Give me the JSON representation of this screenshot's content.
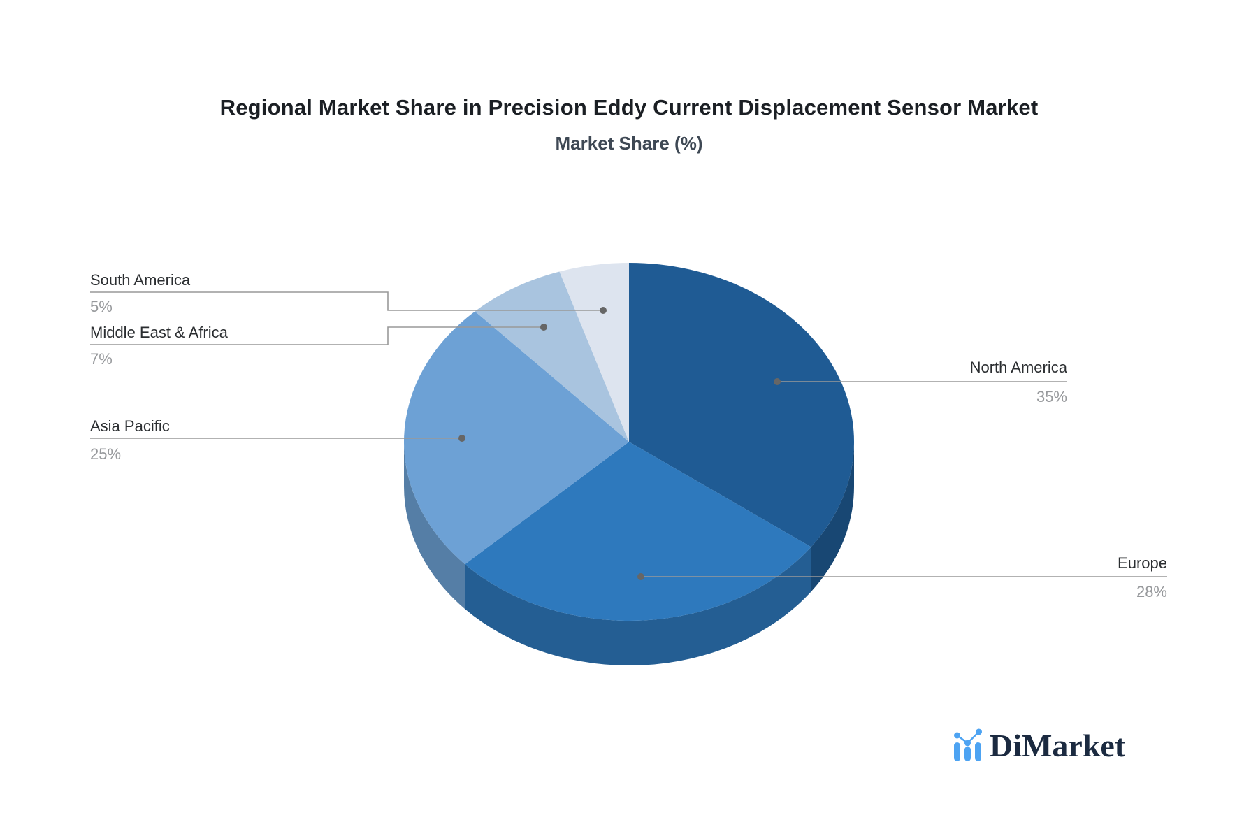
{
  "title": "Regional Market Share in Precision Eddy Current Displacement Sensor Market",
  "subtitle": "Market Share (%)",
  "logo": {
    "text": "DiMarket",
    "icon": "bar-line-chart-icon",
    "icon_color": "#4da3f2",
    "text_color": "#1b2a40"
  },
  "colors": {
    "background": "#ffffff",
    "title_text": "#1b1f24",
    "subtitle_text": "#3e4854",
    "label_text": "#2b2e31",
    "pct_text": "#97999c",
    "leader_line": "#999999",
    "leader_dot": "#666666"
  },
  "chart_data": {
    "type": "pie",
    "style": "3d",
    "title": "Regional Market Share in Precision Eddy Current Displacement Sensor Market",
    "subtitle": "Market Share (%)",
    "unit": "%",
    "start_angle_deg": 0,
    "direction": "clockwise",
    "legend_position": "callout-labels",
    "slices": [
      {
        "label": "North America",
        "value": 35,
        "pct_label": "35%",
        "color": "#1f5b94"
      },
      {
        "label": "Europe",
        "value": 28,
        "pct_label": "28%",
        "color": "#2e79bd"
      },
      {
        "label": "Asia Pacific",
        "value": 25,
        "pct_label": "25%",
        "color": "#6da1d5"
      },
      {
        "label": "Middle East & Africa",
        "value": 7,
        "pct_label": "7%",
        "color": "#a9c4df"
      },
      {
        "label": "South America",
        "value": 5,
        "pct_label": "5%",
        "color": "#dde4ef"
      }
    ]
  }
}
